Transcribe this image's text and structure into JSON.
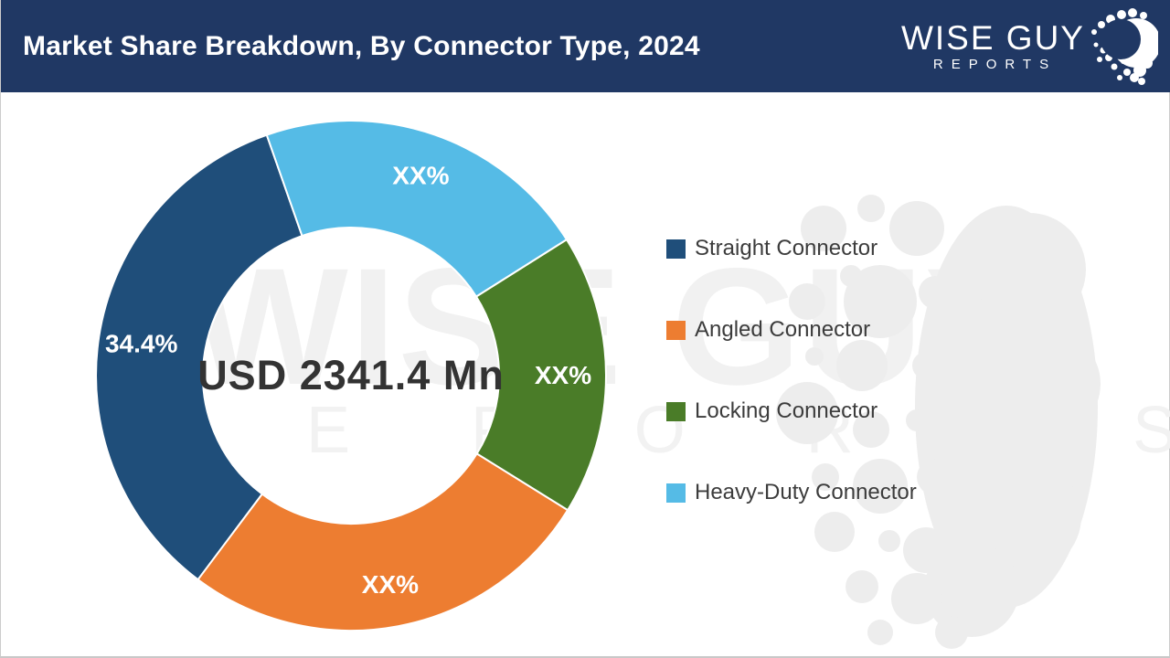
{
  "header": {
    "title": "Market Share Breakdown, By Connector Type, 2024",
    "background": "#203864",
    "logo": {
      "line1": "WISE GUY",
      "line2": "REPORTS"
    }
  },
  "watermark": {
    "line1": "WISE GUY",
    "line2": "R E P O R T S"
  },
  "chart_data": {
    "type": "pie",
    "donut": true,
    "title": "Market Share Breakdown, By Connector Type, 2024",
    "center_label": "USD 2341.4 Mn",
    "start_angle_deg": 109.3,
    "direction": "counterclockwise",
    "legend_position": "right",
    "segments": [
      {
        "name": "Straight Connector",
        "share_pct": 34.4,
        "share_estimated": false,
        "display_label": "34.4%",
        "color": "#1f4e7a"
      },
      {
        "name": "Angled Connector",
        "share_pct": 26.4,
        "share_estimated": true,
        "display_label": "XX%",
        "color": "#ed7d31"
      },
      {
        "name": "Locking Connector",
        "share_pct": 17.8,
        "share_estimated": true,
        "display_label": "XX%",
        "color": "#4a7c28"
      },
      {
        "name": "Heavy-Duty Connector",
        "share_pct": 21.4,
        "share_estimated": true,
        "display_label": "XX%",
        "color": "#55bbe6"
      }
    ]
  },
  "colors": {
    "header_bg": "#203864",
    "content_border": "#cccccc",
    "watermark_text": "#f1f1f1",
    "watermark_face": "#ededed",
    "center_text": "#333333",
    "legend_text": "#3c3c3c",
    "slice_label_text": "#ffffff"
  }
}
